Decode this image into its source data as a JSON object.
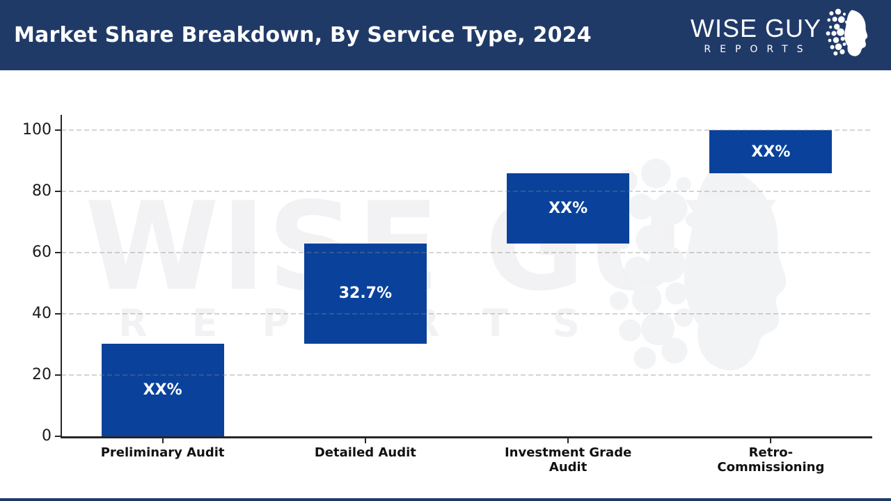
{
  "header": {
    "title": "Market Share Breakdown, By Service Type, 2024",
    "logo": {
      "line1": "WISE GUY",
      "line2": "REPORTS"
    }
  },
  "watermark": {
    "line1": "WISE GUY",
    "line2": "REPORTS"
  },
  "colors": {
    "header_bg": "#203a68",
    "bar_blue": "#0a429b",
    "axis": "#262626",
    "watermark_gray": "#f2f2f4",
    "bar_label": "#ffffff"
  },
  "chart_data": {
    "type": "bar",
    "subtype": "waterfall",
    "title": "Market Share Breakdown, By Service Type, 2024",
    "categories": [
      "Preliminary Audit",
      "Detailed Audit",
      "Investment Grade\nAudit",
      "Retro-\nCommissioning"
    ],
    "segments": [
      {
        "category": "Preliminary Audit",
        "start": 0,
        "end": 30.3,
        "label": "XX%"
      },
      {
        "category": "Detailed Audit",
        "start": 30.3,
        "end": 63.0,
        "label": "32.7%"
      },
      {
        "category": "Investment Grade Audit",
        "start": 63.0,
        "end": 85.9,
        "label": "XX%"
      },
      {
        "category": "Retro-Commissioning",
        "start": 85.9,
        "end": 100,
        "label": "XX%"
      }
    ],
    "yticks": [
      0,
      20,
      40,
      60,
      80,
      100
    ],
    "ylim": [
      0,
      100
    ],
    "xlabel": "",
    "ylabel": "",
    "grid": "dashed-horizontal",
    "legend": "none",
    "bar_color": "#0a429b"
  }
}
